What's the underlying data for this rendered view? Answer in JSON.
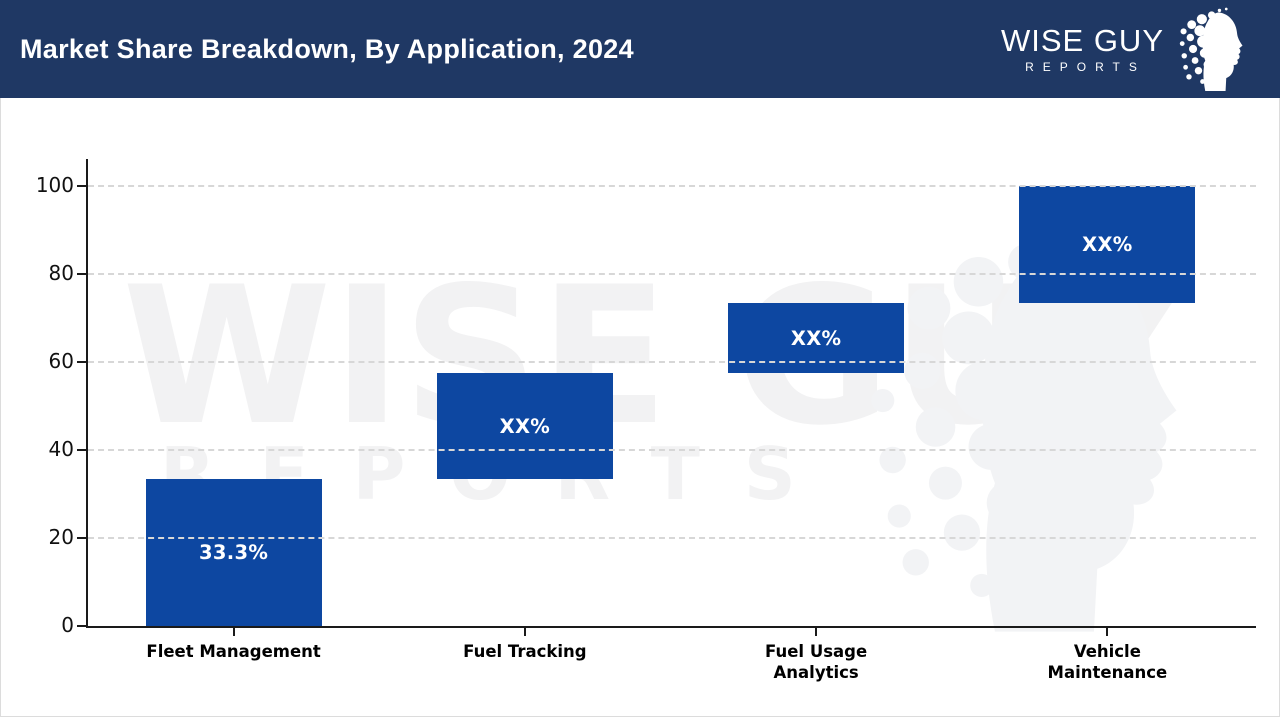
{
  "header": {
    "title": "Market Share Breakdown, By Application, 2024",
    "logo": {
      "line1": "WISE GUY",
      "line2": "REPORTS"
    }
  },
  "watermark": {
    "line1": "WISE GUY",
    "line2": "REPORTS"
  },
  "colors": {
    "header_bg": "#1f3864",
    "bar": "#0d47a1",
    "bar_label_text": "#ffffff",
    "gridline": "#d7d7d7",
    "axis": "#1a1a1a",
    "tick_text": "#111111",
    "watermark": "#f2f2f3"
  },
  "chart_data": {
    "type": "bar",
    "subtype": "waterfall",
    "title": "Market Share Breakdown, By Application, 2024",
    "categories": [
      "Fleet Management",
      "Fuel Tracking",
      "Fuel Usage\nAnalytics",
      "Vehicle\nMaintenance"
    ],
    "bars": [
      {
        "category": "Fleet Management",
        "label": "33.3%",
        "start": 0,
        "end": 33.3
      },
      {
        "category": "Fuel Tracking",
        "label": "XX%",
        "start": 33.3,
        "end": 57.5
      },
      {
        "category": "Fuel Usage Analytics",
        "label": "XX%",
        "start": 57.5,
        "end": 73.3
      },
      {
        "category": "Vehicle Maintenance",
        "label": "XX%",
        "start": 73.3,
        "end": 100
      }
    ],
    "y_ticks": [
      0,
      20,
      40,
      60,
      80,
      100
    ],
    "ylim": [
      0,
      105.5
    ],
    "xlabel": "",
    "ylabel": "",
    "grid": "horizontal-dashed",
    "legend": "none"
  }
}
